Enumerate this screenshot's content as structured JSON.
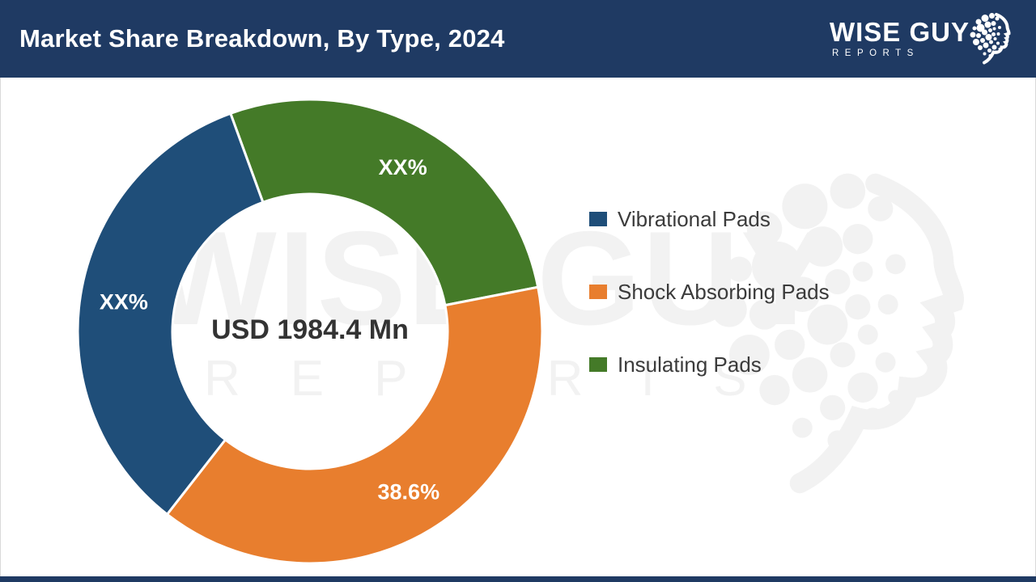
{
  "header": {
    "title": "Market Share Breakdown, By Type, 2024",
    "logo": {
      "line1": "WISE GUY",
      "line2": "REPORTS"
    }
  },
  "watermark": {
    "line1": "WISE GUY",
    "line2": "REPORTS"
  },
  "colors": {
    "header_navy": "#1F3A63",
    "footer_navy": "#1F3A63",
    "blue": "#1F4E79",
    "orange": "#E87E2E",
    "green": "#447A28",
    "watermark_gray": "#F2F2F2",
    "center_text": "#333333"
  },
  "chart_data": {
    "type": "pie",
    "subtype": "donut",
    "title": "Market Share Breakdown, By Type, 2024",
    "center_label": "USD 1984.4 Mn",
    "start_angle_deg": -20,
    "slices": [
      {
        "name": "Insulating Pads",
        "label": "XX%",
        "percent": 27.5,
        "color": "#447A28"
      },
      {
        "name": "Shock Absorbing Pads",
        "label": "38.6%",
        "percent": 38.6,
        "color": "#E87E2E"
      },
      {
        "name": "Vibrational Pads",
        "label": "XX%",
        "percent": 33.9,
        "color": "#1F4E79"
      }
    ],
    "legend": [
      {
        "label": "Vibrational Pads",
        "color": "#1F4E79"
      },
      {
        "label": "Shock Absorbing Pads",
        "color": "#E87E2E"
      },
      {
        "label": "Insulating Pads",
        "color": "#447A28"
      }
    ],
    "legend_position": "right"
  }
}
